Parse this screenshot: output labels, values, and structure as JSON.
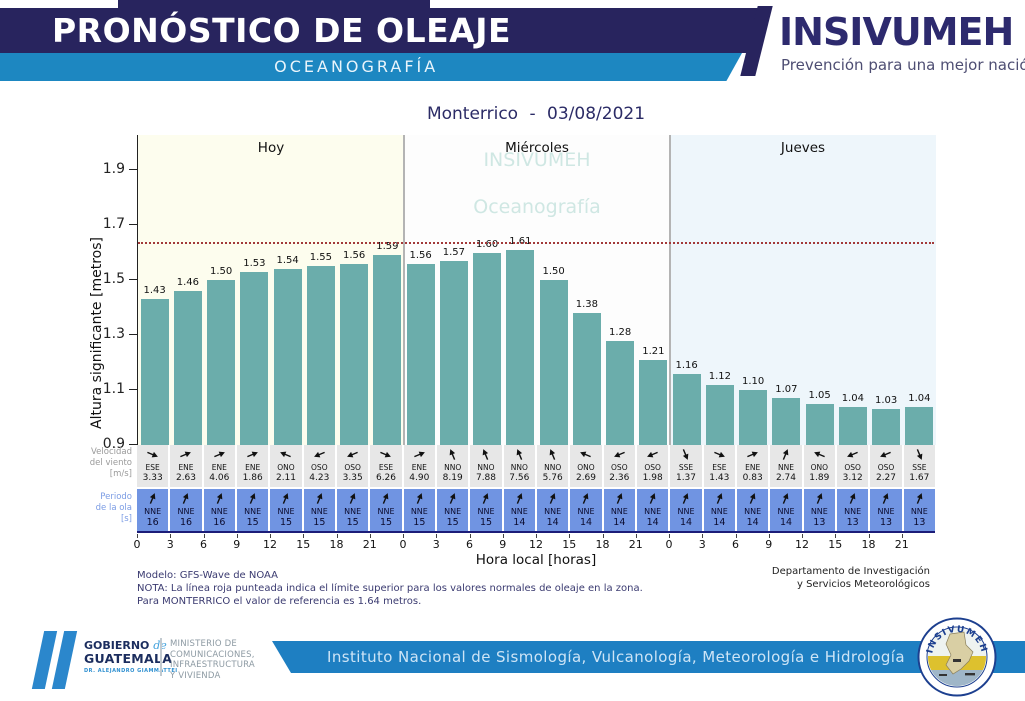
{
  "header": {
    "title": "PRONÓSTICO DE OLEAJE",
    "subtitle": "OCEANOGRAFÍA",
    "brand": "INSIVUMEH",
    "brand_tagline": "Prevención para una mejor nación",
    "navy_color": "#28245e",
    "blue_color": "#1d87c1"
  },
  "chart_data": {
    "type": "bar",
    "title": "Monterrico - 03/08/2021",
    "xlabel": "Hora local [horas]",
    "ylabel": "Altura significante [metros]",
    "ylim": [
      0.9,
      2.03
    ],
    "yticks": [
      0.9,
      1.1,
      1.3,
      1.5,
      1.7,
      1.9
    ],
    "bar_color": "#6badab",
    "reference_line": {
      "value": 1.64,
      "color": "#a23939",
      "style": "dotted"
    },
    "watermark_lines": [
      "INSIVUMEH",
      "Oceanografía"
    ],
    "day_groups": [
      {
        "label": "Hoy",
        "bg": "#fdfdee"
      },
      {
        "label": "Miércoles",
        "bg": "#fdfdfd"
      },
      {
        "label": "Jueves",
        "bg": "#eef6fb"
      }
    ],
    "hours": [
      0,
      3,
      6,
      9,
      12,
      15,
      18,
      21,
      0,
      3,
      6,
      9,
      12,
      15,
      18,
      21,
      0,
      3,
      6,
      9,
      12,
      15,
      18,
      21
    ],
    "wave_height_m": [
      1.43,
      1.46,
      1.5,
      1.53,
      1.54,
      1.55,
      1.56,
      1.59,
      1.56,
      1.57,
      1.6,
      1.61,
      1.5,
      1.38,
      1.28,
      1.21,
      1.16,
      1.12,
      1.1,
      1.07,
      1.05,
      1.04,
      1.03,
      1.04
    ],
    "wind": {
      "row_label_lines": [
        "Velocidad",
        "del viento",
        "[m/s]"
      ],
      "directions": [
        "ESE",
        "ENE",
        "ENE",
        "ENE",
        "ONO",
        "OSO",
        "OSO",
        "ESE",
        "ENE",
        "NNO",
        "NNO",
        "NNO",
        "NNO",
        "ONO",
        "OSO",
        "OSO",
        "SSE",
        "ESE",
        "ENE",
        "NNE",
        "ONO",
        "OSO",
        "OSO",
        "SSE"
      ],
      "speeds_ms": [
        "3.33",
        "2.63",
        "4.06",
        "1.86",
        "2.11",
        "4.23",
        "3.35",
        "6.26",
        "4.90",
        "8.19",
        "7.88",
        "7.56",
        "5.76",
        "2.69",
        "2.36",
        "1.98",
        "1.37",
        "1.43",
        "0.83",
        "2.74",
        "1.89",
        "3.12",
        "2.27",
        "1.67"
      ]
    },
    "wave_period": {
      "row_label_lines": [
        "Periodo",
        "de la ola",
        "[s]"
      ],
      "directions": [
        "NNE",
        "NNE",
        "NNE",
        "NNE",
        "NNE",
        "NNE",
        "NNE",
        "NNE",
        "NNE",
        "NNE",
        "NNE",
        "NNE",
        "NNE",
        "NNE",
        "NNE",
        "NNE",
        "NNE",
        "NNE",
        "NNE",
        "NNE",
        "NNE",
        "NNE",
        "NNE",
        "NNE"
      ],
      "periods_s": [
        16,
        16,
        16,
        15,
        15,
        15,
        15,
        15,
        15,
        15,
        15,
        14,
        14,
        14,
        14,
        14,
        14,
        14,
        14,
        14,
        13,
        13,
        13,
        13
      ]
    }
  },
  "notes": {
    "model": "Modelo: GFS-Wave de NOAA",
    "nota": "NOTA: La línea roja punteada indica el límite superior para los valores normales de oleaje en la zona.",
    "reference": "Para MONTERRICO el valor de referencia es 1.64 metros.",
    "department_line1": "Departamento de Investigación",
    "department_line2": "y Servicios Meteorológicos"
  },
  "footer": {
    "gobierno_word": "GOBIERNO",
    "gobierno_de": "de",
    "guatemala_word": "GUATEMALA",
    "gobierno_sub": "DR. ALEJANDRO GIAMMATTEI",
    "ministry_lines": [
      "MINISTERIO DE",
      "COMUNICACIONES,",
      "INFRAESTRUCTURA",
      "Y VIVIENDA"
    ],
    "band_text": "Instituto Nacional de Sismología, Vulcanología, Meteorología e Hidrología",
    "seal_text": "INSIVUMEH"
  }
}
